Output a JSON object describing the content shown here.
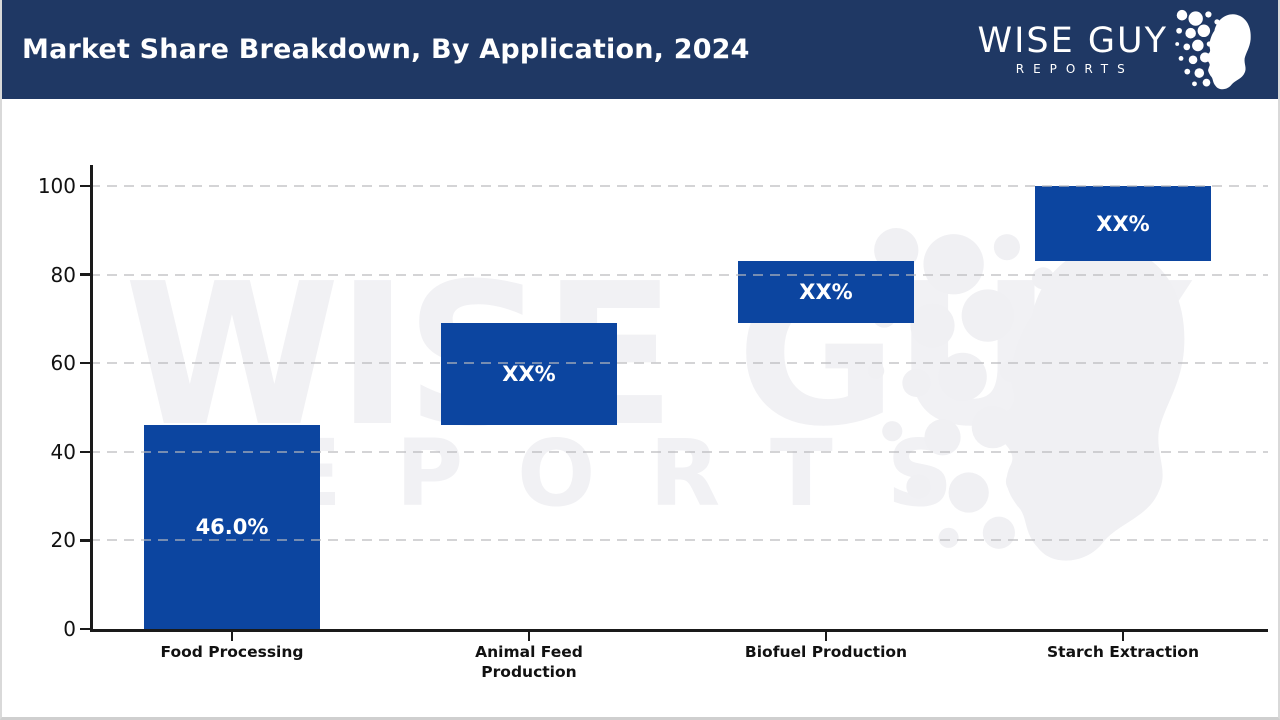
{
  "header": {
    "title": "Market Share Breakdown, By Application, 2024",
    "logo": {
      "line1": "WISE GUY",
      "line2": "REPORTS"
    }
  },
  "watermark": {
    "line1": "WISE GUY",
    "line2": "PORTS",
    "full_line2": "REPORTS"
  },
  "colors": {
    "header_bg": "#1F3864",
    "bar_blue": "#0C45A0",
    "watermark_gray": "#F1F1F4",
    "grid_gray": "#D9D9D9",
    "axis_black": "#1A1A1A",
    "bar_label_white": "#FFFFFF"
  },
  "chart_data": {
    "type": "bar",
    "subtype": "waterfall",
    "title": "Market Share Breakdown, By Application, 2024",
    "categories": [
      "Food Processing",
      "Animal Feed Production",
      "Biofuel Production",
      "Starch Extraction"
    ],
    "bars": [
      {
        "category": "Food Processing",
        "start": 0,
        "end": 46,
        "label": "46.0%"
      },
      {
        "category": "Animal Feed Production",
        "start": 46,
        "end": 69,
        "label": "XX%"
      },
      {
        "category": "Biofuel Production",
        "start": 69,
        "end": 83,
        "label": "XX%"
      },
      {
        "category": "Starch Extraction",
        "start": 83,
        "end": 100,
        "label": "XX%"
      }
    ],
    "ylim": [
      0,
      100
    ],
    "yticks": [
      0,
      20,
      40,
      60,
      80,
      100
    ],
    "grid": "horizontal dashed, drawn over bars",
    "legend": "none",
    "xlabel": "",
    "ylabel": "",
    "bar_color": "#0C45A0",
    "value_label_color": "#FFFFFF"
  }
}
